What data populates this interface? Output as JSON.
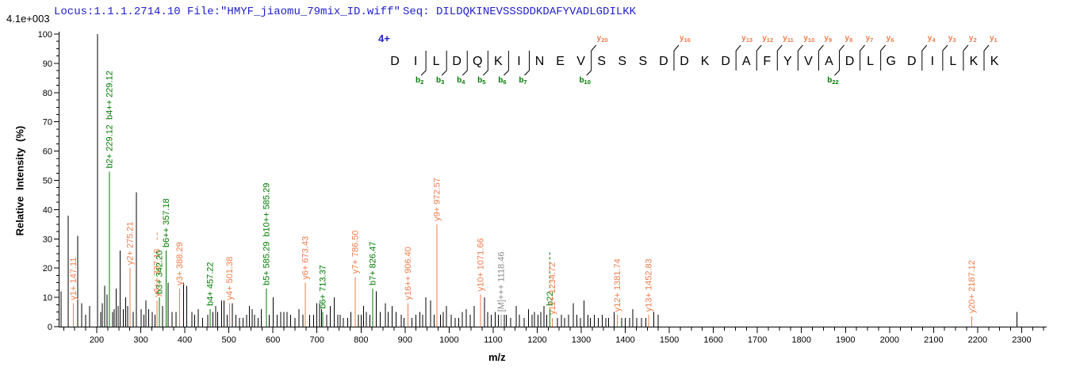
{
  "header": {
    "locus_file": "Locus:1.1.1.2714.10 File:\"HMYF_jiaomu_79mix_ID.wiff\"",
    "seq": "Seq: DILDQKINEVSSSDDKDAFYVADLGDILKK"
  },
  "colors": {
    "header_blue": "#2121CE",
    "y_ion_orange": "#F07B4A",
    "b_ion_green": "#007B00",
    "precursor_gray": "#8C8C8C",
    "peak_black": "#000000"
  },
  "chart_data": {
    "type": "bar",
    "kind": "ms2-fragmentation-spectrum",
    "title": "",
    "xlabel": "m/z",
    "ylabel": "Relative Intensity (%)",
    "intensity_scale": "4.1e+003",
    "precursor_charge": "4+",
    "xlim": [
      115,
      2355
    ],
    "ylim": [
      0,
      100
    ],
    "x_ticks": {
      "label_start": 200,
      "label_end": 2300,
      "label_step": 100,
      "minor_step": 25
    },
    "y_ticks": {
      "label_start": 0,
      "label_end": 100,
      "label_step": 10,
      "minor_step": 2.5
    },
    "grid": false,
    "sequence": {
      "residues": "DILDQKINEVSSSDDKDAFYVADLGDILKK",
      "b_ions": [
        {
          "after": 2,
          "sub": "2"
        },
        {
          "after": 3,
          "sub": "3"
        },
        {
          "after": 4,
          "sub": "4"
        },
        {
          "after": 5,
          "sub": "5"
        },
        {
          "after": 6,
          "sub": "6"
        },
        {
          "after": 7,
          "sub": "7"
        },
        {
          "after": 10,
          "sub": "10"
        },
        {
          "after": 22,
          "sub": "22"
        }
      ],
      "y_ions": [
        {
          "after": 10,
          "sub": "20"
        },
        {
          "after": 14,
          "sub": "16"
        },
        {
          "after": 17,
          "sub": "13"
        },
        {
          "after": 18,
          "sub": "12"
        },
        {
          "after": 19,
          "sub": "11"
        },
        {
          "after": 20,
          "sub": "10"
        },
        {
          "after": 21,
          "sub": "9"
        },
        {
          "after": 22,
          "sub": "8"
        },
        {
          "after": 23,
          "sub": "7"
        },
        {
          "after": 24,
          "sub": "6"
        },
        {
          "after": 26,
          "sub": "4"
        },
        {
          "after": 27,
          "sub": "3"
        },
        {
          "after": 28,
          "sub": "2"
        },
        {
          "after": 29,
          "sub": "1"
        }
      ]
    },
    "labeled_peaks": [
      {
        "mz": 147.11,
        "h": 8,
        "ion": "y",
        "label": "y1+ 147.11"
      },
      {
        "mz": 229.12,
        "h": 53,
        "ion": "b",
        "label": "b2+ 229.12  b4++ 229.12"
      },
      {
        "mz": 275.21,
        "h": 20,
        "ion": "y",
        "label": "y2+ 275.21"
      },
      {
        "mz": 337.16,
        "h": 9,
        "ion": "y",
        "label": "y6++ 337.16",
        "leader_above": 12
      },
      {
        "mz": 342.2,
        "h": 10,
        "ion": "b",
        "label": "b3+ 342.20"
      },
      {
        "mz": 357.18,
        "h": 26,
        "ion": "b",
        "label": "b6++ 357.18"
      },
      {
        "mz": 388.29,
        "h": 13,
        "ion": "y",
        "label": "y3+ 388.29"
      },
      {
        "mz": 457.22,
        "h": 6,
        "ion": "b",
        "label": "b4+ 457.22"
      },
      {
        "mz": 501.38,
        "h": 8,
        "ion": "y",
        "label": "y4+ 501.38"
      },
      {
        "mz": 585.29,
        "h": 13,
        "ion": "b",
        "label": "b5+ 585.29  b10++ 585.29"
      },
      {
        "mz": 673.43,
        "h": 15,
        "ion": "y",
        "label": "y6+ 673.43"
      },
      {
        "mz": 713.37,
        "h": 5,
        "ion": "b",
        "label": "b6+ 713.37"
      },
      {
        "mz": 786.5,
        "h": 17,
        "ion": "y",
        "label": "y7+ 786.50"
      },
      {
        "mz": 826.47,
        "h": 13,
        "ion": "b",
        "label": "b7+ 826.47"
      },
      {
        "mz": 906.4,
        "h": 8,
        "ion": "y",
        "label": "y16++ 906.40"
      },
      {
        "mz": 972.57,
        "h": 35,
        "ion": "y",
        "label": "y9+ 972.57"
      },
      {
        "mz": 1071.66,
        "h": 11,
        "ion": "y",
        "label": "y10+ 1071.66"
      },
      {
        "mz": 1118.46,
        "h": 4,
        "ion": "M",
        "label": "[M]+++ 1118.46"
      },
      {
        "mz": 1228.5,
        "h": 6,
        "ion": "b",
        "label": "b22",
        "leader_above": 48
      },
      {
        "mz": 1234.72,
        "h": 3,
        "ion": "y",
        "label": "y11+ 1234.72"
      },
      {
        "mz": 1381.74,
        "h": 4,
        "ion": "y",
        "label": "y12+ 1381.74"
      },
      {
        "mz": 1452.83,
        "h": 4,
        "ion": "y",
        "label": "y13+ 1452.83"
      },
      {
        "mz": 2187.12,
        "h": 3.5,
        "ion": "y",
        "label": "y20+ 2187.12"
      }
    ],
    "unlabeled_peaks": [
      [
        119,
        12
      ],
      [
        135,
        38
      ],
      [
        157,
        31
      ],
      [
        166,
        8
      ],
      [
        175,
        4
      ],
      [
        184,
        7
      ],
      [
        202,
        100
      ],
      [
        209,
        5
      ],
      [
        213,
        8
      ],
      [
        218,
        14
      ],
      [
        223,
        11
      ],
      [
        236,
        5
      ],
      [
        240,
        6
      ],
      [
        244,
        13
      ],
      [
        249,
        7
      ],
      [
        253,
        26
      ],
      [
        260,
        6
      ],
      [
        266,
        10
      ],
      [
        270,
        7
      ],
      [
        283,
        5
      ],
      [
        290,
        46
      ],
      [
        301,
        6
      ],
      [
        307,
        4
      ],
      [
        312,
        9
      ],
      [
        318,
        6
      ],
      [
        326,
        5
      ],
      [
        332,
        4
      ],
      [
        349,
        7
      ],
      [
        362,
        15
      ],
      [
        371,
        5
      ],
      [
        380,
        5
      ],
      [
        397,
        15
      ],
      [
        404,
        14
      ],
      [
        416,
        5
      ],
      [
        422,
        4
      ],
      [
        430,
        6
      ],
      [
        440,
        3
      ],
      [
        452,
        4
      ],
      [
        464,
        5
      ],
      [
        470,
        7
      ],
      [
        475,
        5
      ],
      [
        484,
        9
      ],
      [
        489,
        9
      ],
      [
        496,
        4
      ],
      [
        508,
        8
      ],
      [
        516,
        4
      ],
      [
        524,
        3
      ],
      [
        532,
        3
      ],
      [
        540,
        4
      ],
      [
        547,
        7
      ],
      [
        553,
        6
      ],
      [
        558,
        4
      ],
      [
        566,
        3
      ],
      [
        574,
        6
      ],
      [
        592,
        4
      ],
      [
        601,
        10
      ],
      [
        610,
        4
      ],
      [
        618,
        5
      ],
      [
        625,
        5
      ],
      [
        632,
        5
      ],
      [
        640,
        4
      ],
      [
        650,
        3
      ],
      [
        659,
        6
      ],
      [
        668,
        4
      ],
      [
        683,
        4
      ],
      [
        692,
        4
      ],
      [
        700,
        8
      ],
      [
        706,
        8
      ],
      [
        710,
        6
      ],
      [
        722,
        4
      ],
      [
        730,
        7
      ],
      [
        739,
        10
      ],
      [
        747,
        4
      ],
      [
        753,
        4
      ],
      [
        760,
        3
      ],
      [
        770,
        3
      ],
      [
        777,
        5
      ],
      [
        794,
        4
      ],
      [
        800,
        4
      ],
      [
        806,
        7
      ],
      [
        812,
        5
      ],
      [
        820,
        4
      ],
      [
        835,
        12
      ],
      [
        844,
        5
      ],
      [
        855,
        8
      ],
      [
        862,
        5
      ],
      [
        871,
        7
      ],
      [
        880,
        5
      ],
      [
        891,
        4
      ],
      [
        898,
        3
      ],
      [
        916,
        3
      ],
      [
        925,
        4
      ],
      [
        934,
        5
      ],
      [
        940,
        4
      ],
      [
        947,
        10
      ],
      [
        958,
        9
      ],
      [
        966,
        4
      ],
      [
        980,
        4
      ],
      [
        987,
        5
      ],
      [
        994,
        7
      ],
      [
        1005,
        4
      ],
      [
        1014,
        3
      ],
      [
        1022,
        3
      ],
      [
        1030,
        5
      ],
      [
        1039,
        6
      ],
      [
        1048,
        4
      ],
      [
        1057,
        7
      ],
      [
        1080,
        10
      ],
      [
        1088,
        5
      ],
      [
        1096,
        4
      ],
      [
        1105,
        5
      ],
      [
        1112,
        4
      ],
      [
        1125,
        4
      ],
      [
        1130,
        4
      ],
      [
        1140,
        3
      ],
      [
        1152,
        7
      ],
      [
        1160,
        4
      ],
      [
        1170,
        3
      ],
      [
        1180,
        6
      ],
      [
        1188,
        4
      ],
      [
        1194,
        5
      ],
      [
        1202,
        4
      ],
      [
        1208,
        5
      ],
      [
        1215,
        7
      ],
      [
        1222,
        4
      ],
      [
        1246,
        3
      ],
      [
        1255,
        4
      ],
      [
        1262,
        3
      ],
      [
        1271,
        4
      ],
      [
        1282,
        8
      ],
      [
        1290,
        4
      ],
      [
        1298,
        3
      ],
      [
        1306,
        9
      ],
      [
        1315,
        4
      ],
      [
        1321,
        3
      ],
      [
        1330,
        4
      ],
      [
        1339,
        3
      ],
      [
        1348,
        4
      ],
      [
        1356,
        3
      ],
      [
        1362,
        3
      ],
      [
        1375,
        5
      ],
      [
        1392,
        3
      ],
      [
        1400,
        3
      ],
      [
        1410,
        3
      ],
      [
        1417,
        6
      ],
      [
        1426,
        3
      ],
      [
        1437,
        3
      ],
      [
        1447,
        3
      ],
      [
        1465,
        5
      ],
      [
        1475,
        4
      ],
      [
        2289,
        5
      ]
    ]
  }
}
